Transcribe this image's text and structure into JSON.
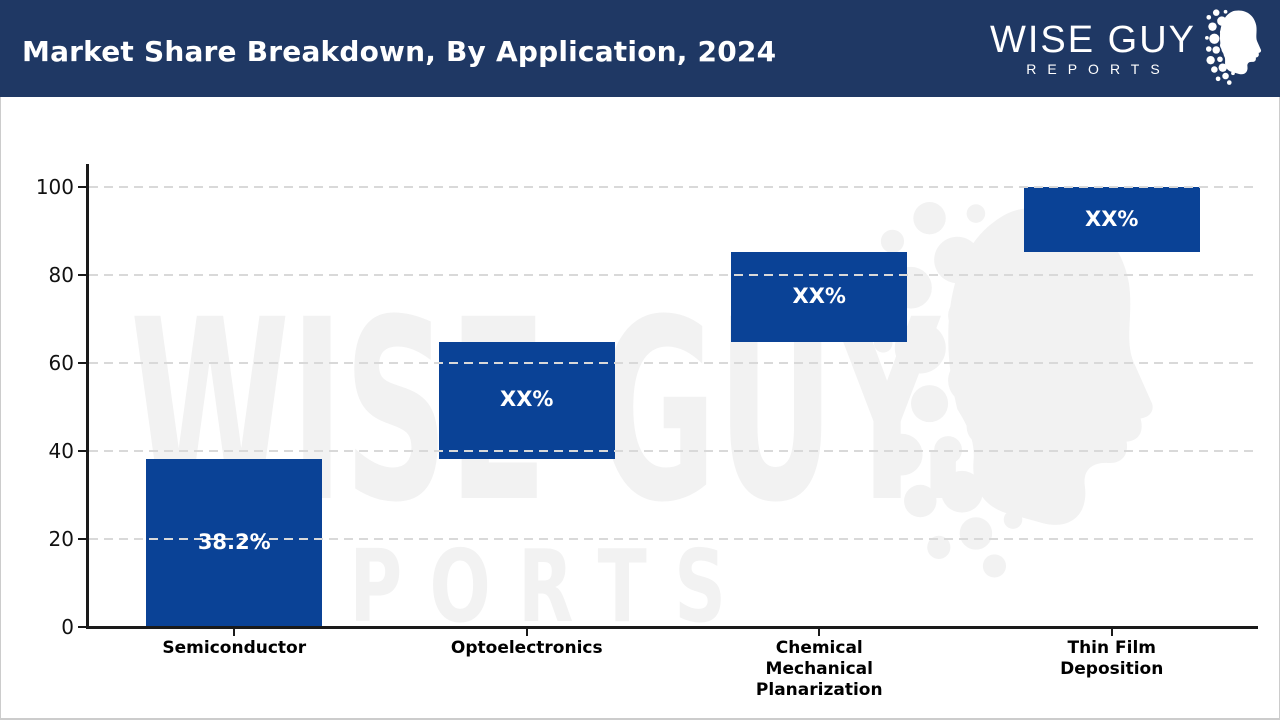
{
  "header": {
    "title": "Market Share Breakdown, By Application, 2024",
    "logo": {
      "wordmark": "WISE GUY",
      "subtext": "REPORTS"
    }
  },
  "watermark": {
    "line1": "WISE GUY.",
    "line2": "REPORTS"
  },
  "colors": {
    "header_bg": "#1f3864",
    "title": "#ffffff",
    "bar": "#0a4296",
    "bar_label": "#ffffff",
    "grid": "#d9d9d9",
    "axis": "#1a1a1a",
    "watermark": "#f2f2f2",
    "frame_border": "#cccccc"
  },
  "chart_data": {
    "type": "bar",
    "variant": "waterfall (floating segment bars)",
    "title": "Market Share Breakdown, By Application, 2024",
    "xlabel": "",
    "ylabel": "",
    "categories": [
      "Semiconductor",
      "Optoelectronics",
      "Chemical Mechanical Planarization",
      "Thin Film Deposition"
    ],
    "segments": [
      {
        "category": "Semiconductor",
        "start": 0,
        "end": 38.2,
        "label": "38.2%"
      },
      {
        "category": "Optoelectronics",
        "start": 38.2,
        "end": 64.8,
        "label": "XX%"
      },
      {
        "category": "Chemical Mechanical Planarization",
        "start": 64.8,
        "end": 85.2,
        "label": "XX%"
      },
      {
        "category": "Thin Film Deposition",
        "start": 85.2,
        "end": 100,
        "label": "XX%"
      }
    ],
    "values": [
      38.2,
      26.6,
      20.4,
      14.8
    ],
    "ylim": [
      0,
      105
    ],
    "yticks": [
      0,
      20,
      40,
      60,
      80,
      100
    ],
    "grid": true,
    "gridline_style": "dashed",
    "legend": null
  }
}
